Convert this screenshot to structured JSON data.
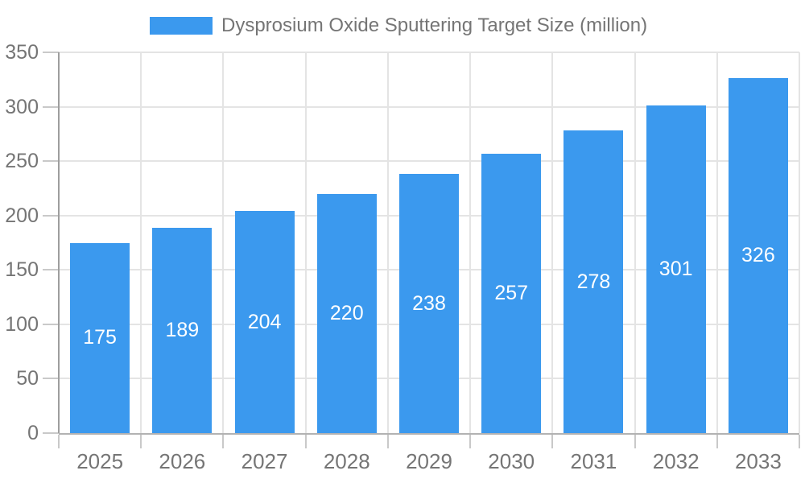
{
  "chart_data": {
    "type": "bar",
    "title": "Dysprosium Oxide Sputtering Target Size (million)",
    "categories": [
      "2025",
      "2026",
      "2027",
      "2028",
      "2029",
      "2030",
      "2031",
      "2032",
      "2033"
    ],
    "values": [
      175,
      189,
      204,
      220,
      238,
      257,
      278,
      301,
      326
    ],
    "xlabel": "",
    "ylabel": "",
    "ylim": [
      0,
      350
    ],
    "yticks": [
      0,
      50,
      100,
      150,
      200,
      250,
      300,
      350
    ],
    "grid": true,
    "legend_position": "top",
    "value_labels": "inside-center",
    "colors": {
      "bar": "#3B99EE",
      "value_label": "#ffffff",
      "axis_label": "#757575",
      "legend_label": "#757575",
      "gridline": "#e4e4e4",
      "y_axis_line": "#9e9e9e",
      "x_axis_line": "#b2b2b2",
      "tick": "#c9c9c9",
      "background": "#ffffff"
    }
  }
}
